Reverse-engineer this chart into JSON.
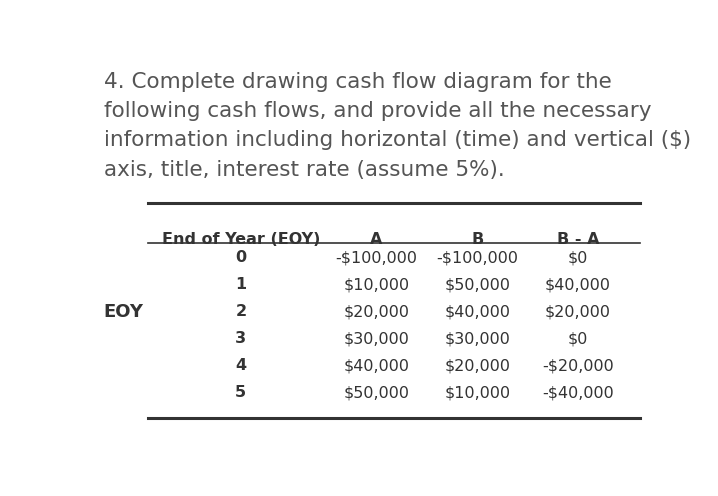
{
  "title_lines": [
    "4. Complete drawing cash flow diagram for the",
    "following cash flows, and provide all the necessary",
    "information including horizontal (time) and vertical ($)",
    "axis, title, interest rate (assume 5%)."
  ],
  "header_col0": "End of Year (EOY)",
  "header_col1": "A",
  "header_col2": "B",
  "header_col3": "B - A",
  "row_label": "EOY",
  "rows": [
    {
      "eoy": "0",
      "A": "-$100,000",
      "B": "-$100,000",
      "BA": "$0"
    },
    {
      "eoy": "1",
      "A": "$10,000",
      "B": "$50,000",
      "BA": "$40,000"
    },
    {
      "eoy": "2",
      "A": "$20,000",
      "B": "$40,000",
      "BA": "$20,000"
    },
    {
      "eoy": "3",
      "A": "$30,000",
      "B": "$30,000",
      "BA": "$0"
    },
    {
      "eoy": "4",
      "A": "$40,000",
      "B": "$20,000",
      "BA": "-$20,000"
    },
    {
      "eoy": "5",
      "A": "$50,000",
      "B": "$10,000",
      "BA": "-$40,000"
    }
  ],
  "bg_color": "#ffffff",
  "title_color": "#555555",
  "text_color": "#333333",
  "title_fontsize": 15.5,
  "table_fontsize": 11.5,
  "header_fontsize": 11.5,
  "eoy_label_fontsize": 13
}
